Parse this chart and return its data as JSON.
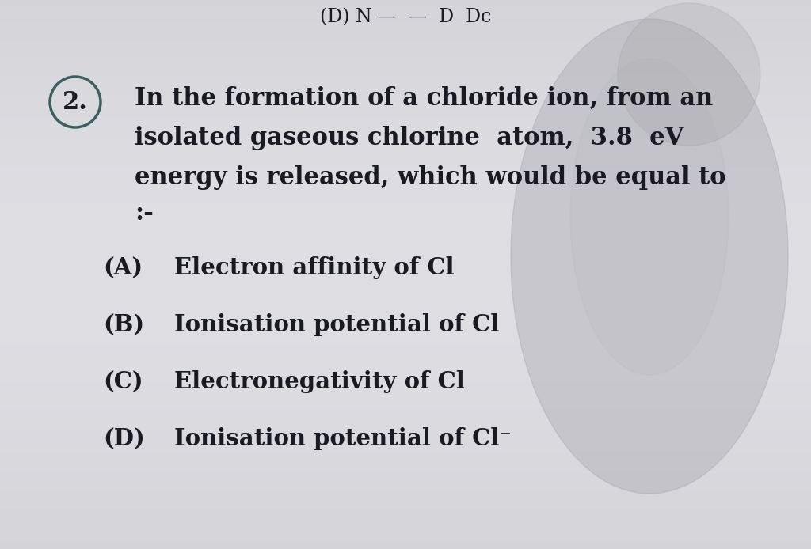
{
  "bg_color_top": "#c8c8cc",
  "bg_color_mid": "#d8d8dc",
  "bg_color_bot": "#c0c0c4",
  "question_number": "2.",
  "circle_color": "#3a6060",
  "question_lines": [
    "In the formation of a chloride ion, from an",
    "isolated gaseous chlorine  atom,  3.8  eV",
    "energy is released, which would be equal to",
    ":-"
  ],
  "options": [
    {
      "label": "(A)",
      "text": "Electron affinity of Cl"
    },
    {
      "label": "(B)",
      "text": "Ionisation potential of Cl"
    },
    {
      "label": "(C)",
      "text": "Electronegativity of Cl"
    },
    {
      "label": "(D)",
      "text": "Ionisation potential of Cl⁻"
    }
  ],
  "header_text": "(D) N —  —  D  Dc",
  "text_color": "#1a1a22",
  "font_size_question": 22,
  "font_size_options": 21,
  "font_size_header": 17
}
